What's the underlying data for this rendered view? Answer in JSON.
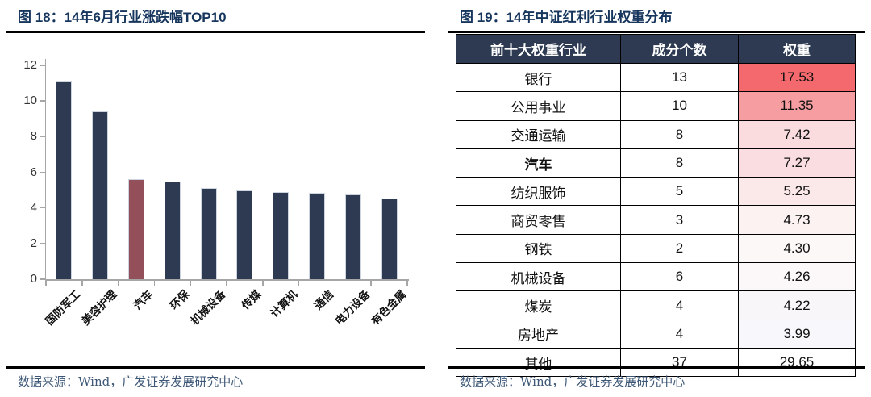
{
  "left_panel": {
    "title": "图 18：14年6月行业涨跌幅TOP10",
    "source": "数据来源：Wind，广发证券发展研究中心"
  },
  "right_panel": {
    "title": "图 19：14年中证红利行业权重分布",
    "source": "数据来源：Wind，广发证券发展研究中心"
  },
  "chart_data": [
    {
      "type": "bar",
      "title": "14年6月行业涨跌幅TOP10",
      "categories": [
        "国防军工",
        "美容护理",
        "汽车",
        "环保",
        "机械设备",
        "传媒",
        "计算机",
        "通信",
        "电力设备",
        "有色金属"
      ],
      "values": [
        11.1,
        9.4,
        5.6,
        5.5,
        5.1,
        5.0,
        4.9,
        4.85,
        4.75,
        4.55
      ],
      "xlabel": "",
      "ylabel": "",
      "ylim": [
        0,
        12
      ],
      "yticks": [
        0,
        2,
        4,
        6,
        8,
        10,
        12
      ],
      "grid": false,
      "legend": "none",
      "bar_color": "#2d3a52",
      "highlight_category": "汽车",
      "highlight_color": "#94505a"
    },
    {
      "type": "table",
      "title": "14年中证红利行业权重分布",
      "headers": [
        "前十大权重行业",
        "成分个数",
        "权重"
      ],
      "header_bg": "#2d3a52",
      "header_color": "#ffffff",
      "highlight_text_color": "#ff0000",
      "rows": [
        {
          "industry": "银行",
          "count": "13",
          "weight": "17.53",
          "weight_bg": "#f4696d",
          "highlight": false
        },
        {
          "industry": "公用事业",
          "count": "10",
          "weight": "11.35",
          "weight_bg": "#f59da0",
          "highlight": false
        },
        {
          "industry": "交通运输",
          "count": "8",
          "weight": "7.42",
          "weight_bg": "#fadcdf",
          "highlight": false
        },
        {
          "industry": "汽车",
          "count": "8",
          "weight": "7.27",
          "weight_bg": "#fadde0",
          "highlight": true
        },
        {
          "industry": "纺织服饰",
          "count": "5",
          "weight": "5.25",
          "weight_bg": "#fbe9ea",
          "highlight": false
        },
        {
          "industry": "商贸零售",
          "count": "3",
          "weight": "4.73",
          "weight_bg": "#fdf2f2",
          "highlight": false
        },
        {
          "industry": "钢铁",
          "count": "2",
          "weight": "4.30",
          "weight_bg": "#fdf8f8",
          "highlight": false
        },
        {
          "industry": "机械设备",
          "count": "6",
          "weight": "4.26",
          "weight_bg": "#fcf7f8",
          "highlight": false
        },
        {
          "industry": "煤炭",
          "count": "4",
          "weight": "4.22",
          "weight_bg": "#f9f6fa",
          "highlight": false
        },
        {
          "industry": "房地产",
          "count": "4",
          "weight": "3.99",
          "weight_bg": "#f7f7fc",
          "highlight": false
        },
        {
          "industry": "其他",
          "count": "37",
          "weight": "29.65",
          "weight_bg": "#ffffff",
          "highlight": false
        }
      ]
    }
  ],
  "colors": {
    "title": "#17365d",
    "source_text": "#3d5877",
    "axis": "#a6a6a6",
    "rule": "#000000",
    "bar": "#2d3a52",
    "bar_highlight": "#94505a"
  }
}
